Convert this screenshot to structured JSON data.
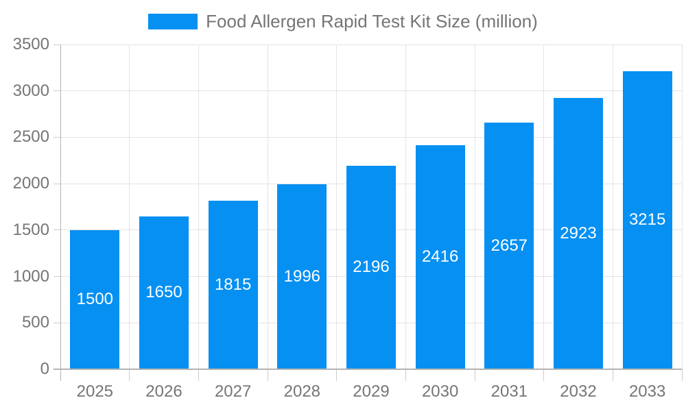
{
  "legend": {
    "label": "Food Allergen Rapid Test Kit Size (million)"
  },
  "colors": {
    "bar": "#0590f2",
    "legend_text": "#757575",
    "axis_text": "#757575",
    "grid_line": "#e3e3e3",
    "axis_line": "#b3b3b3",
    "tick_line": "#cccccc",
    "value_label": "#ffffff",
    "background": "#ffffff"
  },
  "chart_data": {
    "type": "bar",
    "title": "Food Allergen Rapid Test Kit Size (million)",
    "series_name": "Food Allergen Rapid Test Kit Size (million)",
    "categories": [
      "2025",
      "2026",
      "2027",
      "2028",
      "2029",
      "2030",
      "2031",
      "2032",
      "2033"
    ],
    "values": [
      1500,
      1650,
      1815,
      1996,
      2196,
      2416,
      2657,
      2923,
      3215
    ],
    "xlabel": "",
    "ylabel": "",
    "ylim": [
      0,
      3500
    ],
    "ytick_step": 500,
    "yticks": [
      0,
      500,
      1000,
      1500,
      2000,
      2500,
      3000,
      3500
    ],
    "grid": true,
    "legend_position": "top-center",
    "value_labels": "inside-center",
    "bar_color": "#0590f2"
  }
}
